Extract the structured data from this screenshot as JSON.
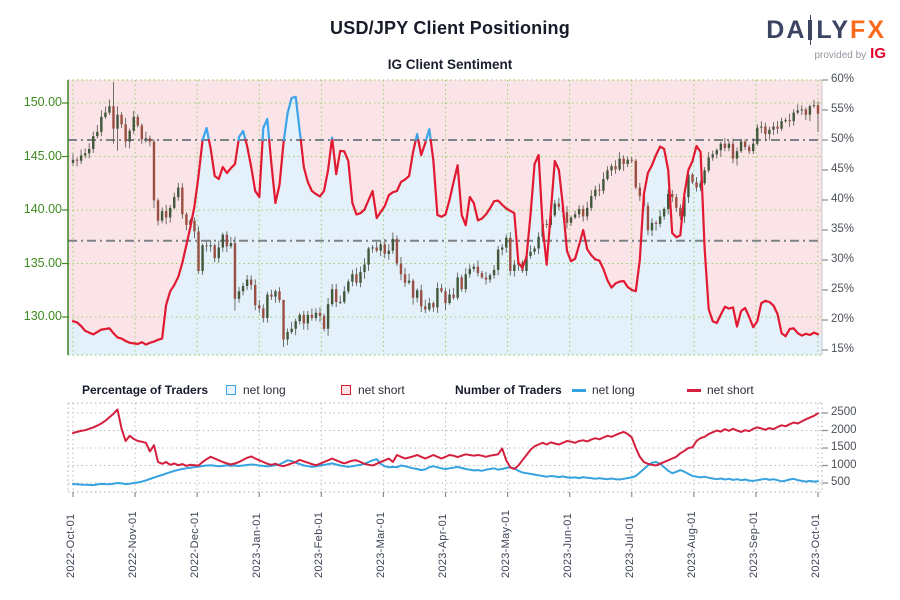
{
  "header": {
    "title": "USD/JPY Client Positioning",
    "subtitle": "IG Client Sentiment",
    "logo": {
      "brand_da": "DA",
      "brand_ly": "LY",
      "brand_fx": "FX",
      "provided_by": "provided by",
      "provider": "IG"
    }
  },
  "legend": {
    "percentage_label": "Percentage of Traders",
    "number_label": "Number of Traders",
    "pct_long": "net long",
    "pct_short": "net short",
    "num_long": "net long",
    "num_short": "net short"
  },
  "colors": {
    "sentiment_blue": "#3ea4ea",
    "sentiment_red": "#e11931",
    "traders_blue": "#36a3e0",
    "traders_red": "#d41f3d",
    "candle_up": "#41573a",
    "candle_down": "#9b4f43",
    "wick": "#4d5148",
    "bg_above": "#fbe4e7",
    "bg_below": "#e4f0fa",
    "grid_green": "#9ccf73",
    "axis_green": "#3e8a20",
    "spine_green": "#2f7a1a",
    "axis_gray_text": "#4b5058",
    "grid_gray": "#b9bdc4",
    "tick_gray": "#878c92",
    "ref_line_gray": "#7d8287",
    "legend_blue_fill": "#e8f4fd",
    "legend_red_fill": "#fce3e8"
  },
  "chart_data": [
    {
      "type": "candlestick+line",
      "title": "USD/JPY price (candles) with IG client net-long percentage (line, blue above 50%, red below)",
      "x_start": "2022-Oct-01",
      "x_end": "2023-Oct-04",
      "interval_days": 2,
      "month_labels": [
        "2022-Oct-01",
        "2022-Nov-01",
        "2022-Dec-01",
        "2023-Jan-01",
        "2023-Feb-01",
        "2023-Mar-01",
        "2023-Apr-01",
        "2023-May-01",
        "2023-Jun-01",
        "2023-Jul-01",
        "2023-Aug-01",
        "2023-Sep-01",
        "2023-Oct-01"
      ],
      "price_axis": {
        "side": "left",
        "ticks": [
          150,
          145,
          140,
          135,
          130
        ],
        "labels": [
          "150.00",
          "145.00",
          "140.00",
          "135.00",
          "130.00"
        ],
        "ylim": [
          126.4,
          152.1
        ]
      },
      "pct_axis": {
        "side": "right",
        "ticks": [
          60,
          55,
          50,
          45,
          40,
          35,
          30,
          25,
          20,
          15
        ],
        "labels": [
          "60%",
          "55%",
          "50%",
          "45%",
          "40%",
          "35%",
          "30%",
          "25%",
          "20%",
          "15%"
        ],
        "ylim": [
          15,
          60
        ]
      },
      "reference_lines_pct": [
        50,
        33.2
      ],
      "price_close": [
        144.7,
        144.6,
        145.1,
        145.3,
        145.7,
        146.9,
        147.3,
        148.7,
        149.1,
        149.7,
        147.6,
        148.9,
        148.0,
        146.4,
        147.4,
        148.7,
        147.9,
        146.6,
        146.7,
        146.4,
        140.9,
        139.0,
        139.9,
        139.3,
        140.2,
        141.2,
        142.1,
        139.6,
        138.6,
        139.0,
        138.0,
        134.3,
        136.7,
        136.6,
        136.7,
        135.5,
        136.5,
        137.7,
        136.6,
        136.9,
        131.7,
        132.4,
        132.9,
        133.5,
        133.0,
        131.1,
        130.8,
        129.9,
        132.1,
        131.9,
        132.4,
        131.6,
        127.9,
        128.6,
        128.9,
        129.6,
        130.2,
        129.4,
        130.2,
        129.9,
        130.4,
        130.1,
        128.9,
        131.2,
        132.6,
        131.4,
        131.4,
        132.4,
        133.3,
        134.0,
        133.2,
        134.2,
        134.9,
        136.4,
        136.5,
        136.2,
        136.8,
        135.9,
        136.2,
        137.3,
        135.0,
        134.0,
        133.2,
        133.4,
        131.8,
        132.5,
        131.0,
        130.7,
        131.3,
        130.9,
        132.7,
        132.4,
        131.3,
        132.1,
        131.8,
        133.7,
        132.6,
        134.0,
        134.5,
        134.7,
        134.1,
        133.7,
        133.5,
        133.9,
        134.4,
        136.3,
        136.5,
        137.4,
        134.3,
        134.9,
        135.1,
        134.3,
        135.7,
        136.1,
        136.4,
        137.5,
        138.7,
        138.6,
        139.5,
        140.6,
        140.3,
        139.8,
        138.8,
        139.3,
        139.6,
        140.1,
        139.4,
        140.2,
        141.3,
        141.9,
        141.8,
        142.9,
        143.7,
        144.1,
        143.8,
        144.8,
        144.3,
        144.7,
        144.6,
        142.1,
        141.3,
        140.4,
        138.1,
        138.8,
        138.7,
        139.4,
        140.1,
        141.5,
        141.2,
        140.2,
        139.4,
        141.2,
        143.3,
        142.6,
        142.1,
        142.5,
        143.7,
        144.9,
        145.2,
        145.6,
        146.2,
        145.8,
        146.2,
        144.8,
        145.5,
        146.4,
        145.9,
        145.5,
        146.2,
        147.7,
        147.8,
        147.1,
        147.5,
        147.8,
        147.6,
        148.3,
        148.4,
        148.3,
        149.1,
        149.3,
        149.4,
        148.9,
        149.7,
        149.8,
        149.0
      ],
      "price_spikes": {
        "10": [
          151.95,
          146.2
        ],
        "11": [
          149.7,
          145.55
        ],
        "20": [
          146.6,
          140.2
        ],
        "40": [
          137.5,
          130.6
        ],
        "52": [
          131.6,
          127.2
        ],
        "184": [
          150.15,
          147.3
        ]
      },
      "net_long_pct": [
        19.8,
        19.6,
        19.0,
        18.2,
        17.9,
        17.6,
        18.0,
        18.4,
        18.5,
        18.6,
        17.8,
        17.1,
        16.9,
        16.5,
        16.2,
        16.1,
        16.0,
        16.3,
        15.9,
        16.2,
        16.4,
        16.7,
        16.9,
        22.5,
        24.8,
        25.8,
        27.2,
        29.5,
        32.5,
        35.5,
        39.0,
        44.0,
        50.0,
        52.0,
        48.5,
        44.0,
        43.5,
        45.5,
        44.5,
        45.3,
        46.0,
        50.5,
        51.5,
        49.0,
        45.5,
        41.5,
        40.5,
        52.0,
        53.5,
        46.0,
        39.5,
        42.5,
        49.5,
        54.5,
        57.0,
        57.2,
        51.5,
        45.5,
        43.0,
        41.5,
        41.0,
        40.6,
        41.5,
        45.0,
        50.4,
        44.3,
        48.2,
        48.1,
        46.5,
        39.5,
        37.6,
        37.8,
        38.4,
        40.0,
        41.5,
        37.0,
        38.0,
        39.0,
        40.8,
        41.3,
        41.5,
        43.0,
        43.4,
        44.0,
        48.0,
        51.0,
        47.5,
        49.5,
        51.8,
        46.5,
        37.5,
        37.2,
        37.6,
        40.0,
        43.0,
        45.8,
        37.5,
        35.8,
        40.5,
        39.5,
        36.6,
        36.9,
        37.6,
        38.6,
        39.8,
        39.9,
        39.2,
        38.6,
        38.2,
        37.8,
        29.5,
        28.7,
        30.5,
        37.5,
        46.0,
        47.5,
        35.5,
        29.2,
        38.0,
        46.5,
        45.0,
        39.0,
        31.5,
        29.8,
        30.2,
        32.5,
        35.0,
        31.8,
        30.8,
        30.1,
        29.9,
        28.5,
        26.6,
        25.4,
        26.1,
        26.4,
        26.5,
        25.5,
        25.0,
        24.8,
        30.0,
        41.0,
        44.5,
        45.8,
        47.5,
        48.9,
        48.5,
        45.0,
        34.5,
        33.8,
        34.1,
        41.0,
        45.0,
        46.5,
        49.0,
        48.0,
        32.0,
        21.8,
        19.8,
        19.5,
        20.9,
        22.2,
        21.9,
        22.1,
        18.9,
        21.5,
        22.0,
        20.5,
        18.8,
        19.8,
        22.8,
        23.2,
        23.0,
        22.4,
        21.0,
        17.8,
        17.3,
        18.5,
        18.6,
        17.8,
        17.4,
        17.7,
        17.5,
        17.9,
        17.6
      ]
    },
    {
      "type": "line",
      "title": "Number of Traders",
      "y_ticks": [
        2500,
        2000,
        1500,
        1000,
        500
      ],
      "y_tick_labels": [
        "2500",
        "2000",
        "1500",
        "1000",
        "500"
      ],
      "series": [
        {
          "name": "net short",
          "color": "#d41f3d",
          "values": [
            1930,
            1960,
            1990,
            2010,
            2050,
            2090,
            2140,
            2200,
            2280,
            2380,
            2480,
            2600,
            2050,
            1700,
            1850,
            1760,
            1700,
            1680,
            1650,
            1400,
            1580,
            1100,
            1050,
            1100,
            1020,
            1060,
            1010,
            1040,
            990,
            1020,
            1010,
            1000,
            1100,
            1180,
            1250,
            1200,
            1150,
            1100,
            1060,
            1030,
            1060,
            1100,
            1160,
            1220,
            1260,
            1200,
            1150,
            1100,
            1050,
            1020,
            1050,
            1000,
            980,
            1020,
            1060,
            1100,
            1160,
            1120,
            1080,
            1040,
            1010,
            1050,
            1100,
            1150,
            1200,
            1150,
            1100,
            1060,
            1100,
            1140,
            1150,
            1100,
            1050,
            1020,
            1000,
            1050,
            1100,
            1150,
            1200,
            1100,
            1300,
            1250,
            1200,
            1230,
            1260,
            1300,
            1250,
            1200,
            1250,
            1300,
            1250,
            1200,
            1250,
            1300,
            1280,
            1240,
            1280,
            1320,
            1300,
            1280,
            1300,
            1280,
            1250,
            1280,
            1300,
            1320,
            1490,
            1150,
            950,
            900,
            1000,
            1150,
            1300,
            1450,
            1550,
            1600,
            1650,
            1600,
            1660,
            1630,
            1600,
            1650,
            1700,
            1680,
            1650,
            1700,
            1720,
            1690,
            1740,
            1780,
            1750,
            1800,
            1850,
            1820,
            1870,
            1920,
            1960,
            1900,
            1800,
            1500,
            1250,
            1100,
            1050,
            1020,
            1000,
            1050,
            1100,
            1150,
            1200,
            1250,
            1350,
            1420,
            1500,
            1520,
            1700,
            1785,
            1820,
            1900,
            1950,
            2000,
            1970,
            2040,
            1990,
            2050,
            2000,
            1960,
            2010,
            1980,
            2050,
            2090,
            2060,
            2020,
            2070,
            2040,
            2100,
            2150,
            2120,
            2180,
            2230,
            2200,
            2260,
            2320,
            2370,
            2420,
            2490
          ]
        },
        {
          "name": "net long",
          "color": "#36a3e0",
          "values": [
            470,
            465,
            455,
            450,
            445,
            440,
            460,
            475,
            470,
            465,
            480,
            500,
            490,
            470,
            480,
            500,
            515,
            540,
            575,
            615,
            655,
            695,
            730,
            770,
            810,
            845,
            875,
            900,
            920,
            940,
            955,
            970,
            985,
            1000,
            1010,
            995,
            980,
            990,
            1005,
            990,
            1000,
            985,
            1000,
            1015,
            1030,
            1020,
            1000,
            990,
            975,
            990,
            1010,
            1030,
            1090,
            1150,
            1130,
            1080,
            1040,
            1000,
            980,
            960,
            975,
            1000,
            1020,
            1040,
            1060,
            1030,
            1000,
            980,
            960,
            980,
            1000,
            1020,
            1050,
            1100,
            1150,
            1180,
            1050,
            980,
            950,
            960,
            950,
            1000,
            980,
            950,
            920,
            900,
            870,
            890,
            950,
            980,
            950,
            920,
            900,
            920,
            940,
            960,
            930,
            900,
            880,
            860,
            870,
            850,
            880,
            900,
            920,
            880,
            900,
            930,
            950,
            920,
            850,
            800,
            780,
            760,
            740,
            720,
            700,
            680,
            700,
            690,
            670,
            690,
            660,
            650,
            660,
            640,
            670,
            650,
            640,
            620,
            640,
            620,
            610,
            630,
            610,
            600,
            620,
            640,
            660,
            700,
            800,
            900,
            1000,
            1080,
            1100,
            1050,
            950,
            850,
            780,
            820,
            870,
            820,
            760,
            700,
            680,
            660,
            680,
            650,
            630,
            610,
            630,
            600,
            620,
            590,
            610,
            580,
            600,
            570,
            560,
            580,
            600,
            620,
            590,
            610,
            580,
            550,
            570,
            600,
            620,
            580,
            560,
            540,
            560,
            540,
            550
          ]
        }
      ]
    }
  ]
}
